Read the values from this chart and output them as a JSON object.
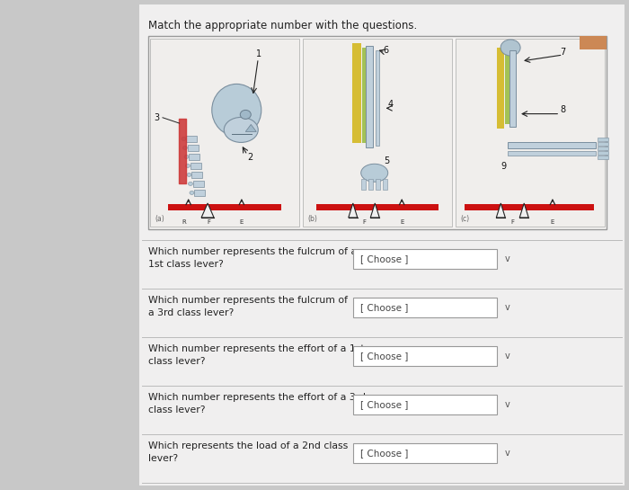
{
  "title": "Match the appropriate number with the questions.",
  "bg_color": "#c8c8c8",
  "panel_bg": "#f0efef",
  "image_box_bg": "#e8e8e8",
  "questions": [
    "Which number represents the fulcrum of a\n1st class lever?",
    "Which number represents the fulcrum of\na 3rd class lever?",
    "Which number represents the effort of a 1st\nclass lever?",
    "Which number represents the effort of a 3rd\nclass lever?",
    "Which represents the load of a 2nd class\nlever?"
  ],
  "choose_label": "[ Choose ]",
  "separator_color": "#bbbbbb",
  "text_color": "#222222",
  "choose_box_color": "#ffffff",
  "choose_box_border": "#999999",
  "choose_text_color": "#444444",
  "title_fontsize": 8.5,
  "question_fontsize": 7.8,
  "choose_fontsize": 7.5,
  "red_bar_color": "#cc1111",
  "num_color": "#111111",
  "arrow_color": "#111111",
  "bone_color": "#b0c4d0",
  "muscle_red": "#cc3333",
  "muscle_yellow": "#d4c040",
  "muscle_green": "#88aa44"
}
